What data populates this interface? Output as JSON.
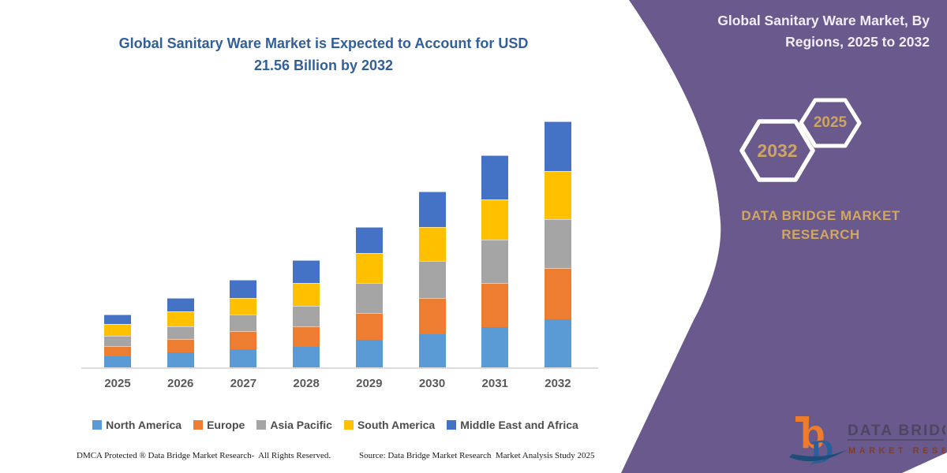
{
  "chart": {
    "title_lines": [
      "Global Sanitary Ware Market is Expected to Account for USD",
      "21.56 Billion by 2032"
    ],
    "title_color": "#315f9c",
    "axis_labels_color": "#595959",
    "footer_left": "DMCA Protected ® Data Bridge Market Research-  All Rights Reserved.",
    "footer_right": "Source: Data Bridge Market Research  Market Analysis Study 2025"
  },
  "chart_data": {
    "type": "bar",
    "stacked": true,
    "title": "Global Sanitary Ware Market is Expected to Account for USD 21.56 Billion by 2032",
    "unit": "USD Billion (values estimated from bar heights)",
    "categories": [
      "2025",
      "2026",
      "2027",
      "2028",
      "2029",
      "2030",
      "2031",
      "2032"
    ],
    "series": [
      {
        "name": "North America",
        "color": "#5b9bd5",
        "values": [
          1.0,
          1.3,
          1.6,
          1.8,
          2.4,
          2.9,
          3.5,
          4.2
        ]
      },
      {
        "name": "Europe",
        "color": "#ed7d31",
        "values": [
          0.9,
          1.2,
          1.6,
          1.8,
          2.4,
          3.2,
          3.9,
          4.5
        ]
      },
      {
        "name": "Asia Pacific",
        "color": "#a5a5a5",
        "values": [
          0.9,
          1.1,
          1.4,
          1.8,
          2.6,
          3.2,
          3.8,
          4.3
        ]
      },
      {
        "name": "South America",
        "color": "#ffc000",
        "values": [
          1.0,
          1.3,
          1.5,
          2.0,
          2.6,
          3.0,
          3.5,
          4.2
        ]
      },
      {
        "name": "Middle East and Africa",
        "color": "#4472c4",
        "values": [
          0.8,
          1.2,
          1.6,
          2.0,
          2.3,
          3.1,
          3.9,
          4.36
        ]
      }
    ],
    "totals_note": "2032 total = 21.56 USD Billion",
    "ylim": [
      0,
      21.56
    ],
    "grid": false,
    "legend_position": "bottom"
  },
  "side_panel": {
    "background": "#69598c",
    "heading": "Global Sanitary Ware Market, By Regions, 2025 to 2032",
    "hexagons": [
      {
        "label": "2032"
      },
      {
        "label": "2025"
      }
    ],
    "brand_text": "DATA BRIDGE MARKET RESEARCH",
    "gold_color": "#cda563",
    "logo": {
      "line1": "DATA BRIDGE",
      "line2": "MARKET RESEARCH"
    }
  }
}
